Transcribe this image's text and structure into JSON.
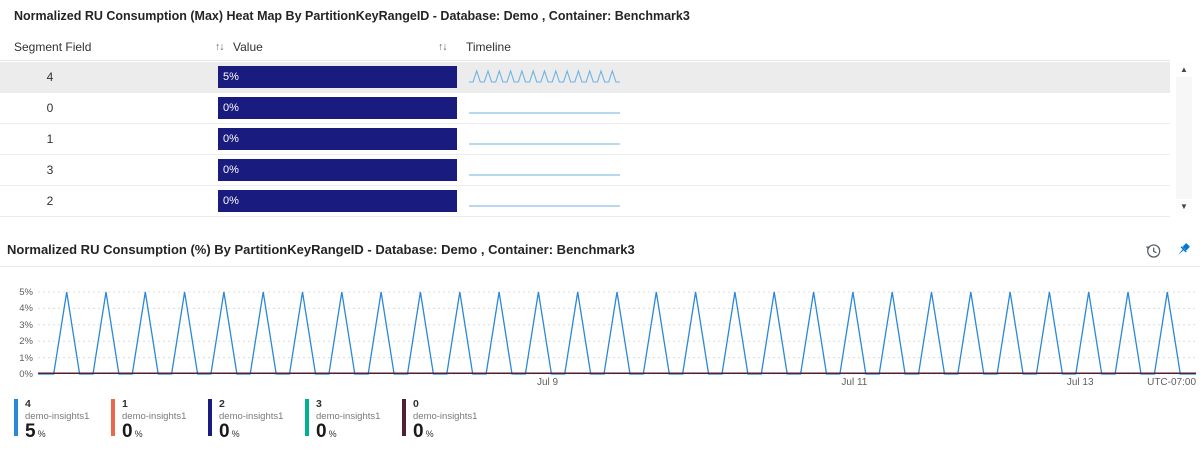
{
  "heatmap": {
    "title": "Normalized RU Consumption (Max) Heat Map By PartitionKeyRangeID - Database: Demo , Container: Benchmark3",
    "columns": {
      "segment": "Segment Field",
      "value": "Value",
      "timeline": "Timeline"
    },
    "sort_icon": "↑↓",
    "bar_color": "#1a1b7e",
    "sparkline_color": "#6cb3e2",
    "rows": [
      {
        "segment": "4",
        "value": "5%",
        "selected": true,
        "spark": "spiky"
      },
      {
        "segment": "0",
        "value": "0%",
        "selected": false,
        "spark": "flat"
      },
      {
        "segment": "1",
        "value": "0%",
        "selected": false,
        "spark": "flat"
      },
      {
        "segment": "3",
        "value": "0%",
        "selected": false,
        "spark": "flat"
      },
      {
        "segment": "2",
        "value": "0%",
        "selected": false,
        "spark": "flat"
      }
    ]
  },
  "scrollbar": {
    "up_icon": "▲",
    "down_icon": "▼"
  },
  "chart_data": {
    "type": "line",
    "title": "Normalized RU Consumption (%) By PartitionKeyRangeID - Database: Demo , Container: Benchmark3",
    "ylim": [
      0,
      5
    ],
    "y_ticks": [
      "5%",
      "4%",
      "3%",
      "2%",
      "1%",
      "0%"
    ],
    "x_ticks": [
      {
        "label": "Jul 9",
        "pos": 0.44
      },
      {
        "label": "Jul 11",
        "pos": 0.705
      },
      {
        "label": "Jul 13",
        "pos": 0.9
      }
    ],
    "timezone_label": "UTC-07:00",
    "grid": "dashed-horizontal",
    "series": [
      {
        "name": "4",
        "scope": "demo-insights1",
        "color": "#2b88d8",
        "pattern": "triangular-spikes",
        "spike_count": 29,
        "peak": 5,
        "base": 0
      },
      {
        "name": "1",
        "scope": "demo-insights1",
        "color": "#e8694b",
        "pattern": "flat",
        "value": 0
      },
      {
        "name": "2",
        "scope": "demo-insights1",
        "color": "#1a1b7e",
        "pattern": "flat",
        "value": 0
      },
      {
        "name": "3",
        "scope": "demo-insights1",
        "color": "#00b294",
        "pattern": "flat",
        "value": 0
      },
      {
        "name": "0",
        "scope": "demo-insights1",
        "color": "#4f2139",
        "pattern": "flat",
        "value": 0
      }
    ]
  },
  "legend": {
    "items": [
      {
        "name": "4",
        "scope": "demo-insights1",
        "value": "5",
        "unit": "%",
        "color": "#2b88d8"
      },
      {
        "name": "1",
        "scope": "demo-insights1",
        "value": "0",
        "unit": "%",
        "color": "#e8694b"
      },
      {
        "name": "2",
        "scope": "demo-insights1",
        "value": "0",
        "unit": "%",
        "color": "#1a1b7e"
      },
      {
        "name": "3",
        "scope": "demo-insights1",
        "value": "0",
        "unit": "%",
        "color": "#00b294"
      },
      {
        "name": "0",
        "scope": "demo-insights1",
        "value": "0",
        "unit": "%",
        "color": "#4f2139"
      }
    ]
  }
}
